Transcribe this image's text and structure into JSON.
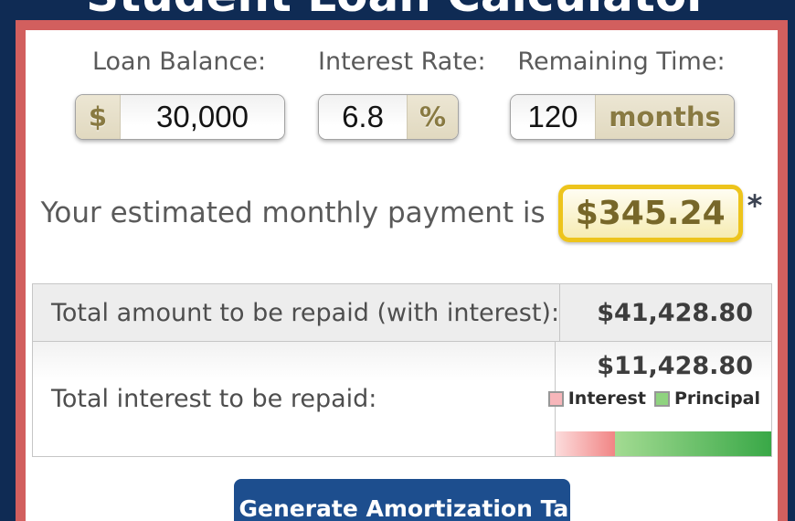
{
  "title": "Student Loan Calculator",
  "inputs": {
    "loan_balance": {
      "label": "Loan Balance:",
      "prefix": "$",
      "value": "30,000"
    },
    "interest_rate": {
      "label": "Interest Rate:",
      "value": "6.8",
      "suffix": "%"
    },
    "remaining_time": {
      "label": "Remaining Time:",
      "value": "120",
      "suffix": "months"
    }
  },
  "result": {
    "text": "Your estimated monthly payment is",
    "amount": "$345.24",
    "footnote_marker": "*"
  },
  "summary_table": {
    "rows": [
      {
        "label": "Total amount to be repaid (with interest):",
        "value": "$41,428.80"
      },
      {
        "label": "Total interest to be repaid:",
        "value": "$11,428.80"
      }
    ],
    "legend": [
      {
        "label": "Interest",
        "color": "#f7b6ba"
      },
      {
        "label": "Principal",
        "color": "#8fd37f"
      }
    ],
    "bar": {
      "interest_pct": 27.6,
      "principal_pct": 72.4
    }
  },
  "button": {
    "label": "Generate Amortization Table"
  },
  "colors": {
    "background_navy": "#0f2b54",
    "frame_red": "#d25f5e",
    "accent_gold": "#edc41c",
    "button_blue": "#1d4e8e"
  }
}
